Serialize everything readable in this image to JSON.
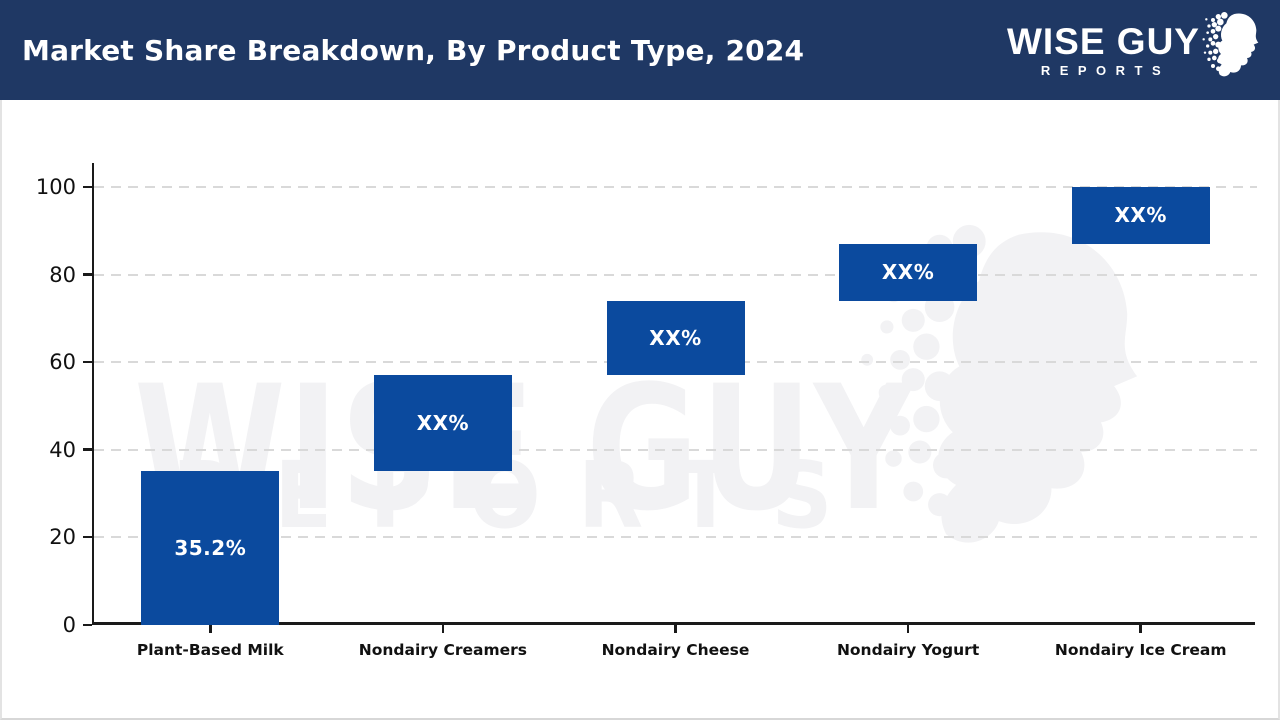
{
  "header": {
    "title": "Market Share Breakdown, By Product Type, 2024",
    "background_color": "#1f3864",
    "logo": {
      "line1": "WISE GUY",
      "line2": "REPORTS"
    }
  },
  "watermark": {
    "line1": "WISE GUY",
    "line2": "REPORTS"
  },
  "chart_data": {
    "type": "bar",
    "subtype": "waterfall",
    "title": "Market Share Breakdown, By Product Type, 2024",
    "xlabel": "",
    "ylabel": "",
    "categories": [
      "Plant-Based Milk",
      "Nondairy Creamers",
      "Nondairy Cheese",
      "Nondairy Yogurt",
      "Nondairy Ice Cream"
    ],
    "segments": [
      {
        "category": "Plant-Based Milk",
        "start": 0,
        "end": 35.2,
        "label": "35.2%"
      },
      {
        "category": "Nondairy Creamers",
        "start": 35.2,
        "end": 57,
        "label": "XX%"
      },
      {
        "category": "Nondairy Cheese",
        "start": 57,
        "end": 74,
        "label": "XX%"
      },
      {
        "category": "Nondairy Yogurt",
        "start": 74,
        "end": 87,
        "label": "XX%"
      },
      {
        "category": "Nondairy Ice Cream",
        "start": 87,
        "end": 100,
        "label": "XX%"
      }
    ],
    "ylim": [
      0,
      105
    ],
    "yticks": [
      0,
      20,
      40,
      60,
      80,
      100
    ],
    "grid": "horizontal dashed",
    "gridline_color": "#d9d9d9",
    "bar_color": "#0b4a9e",
    "bar_label_color": "#ffffff",
    "legend": "none"
  }
}
